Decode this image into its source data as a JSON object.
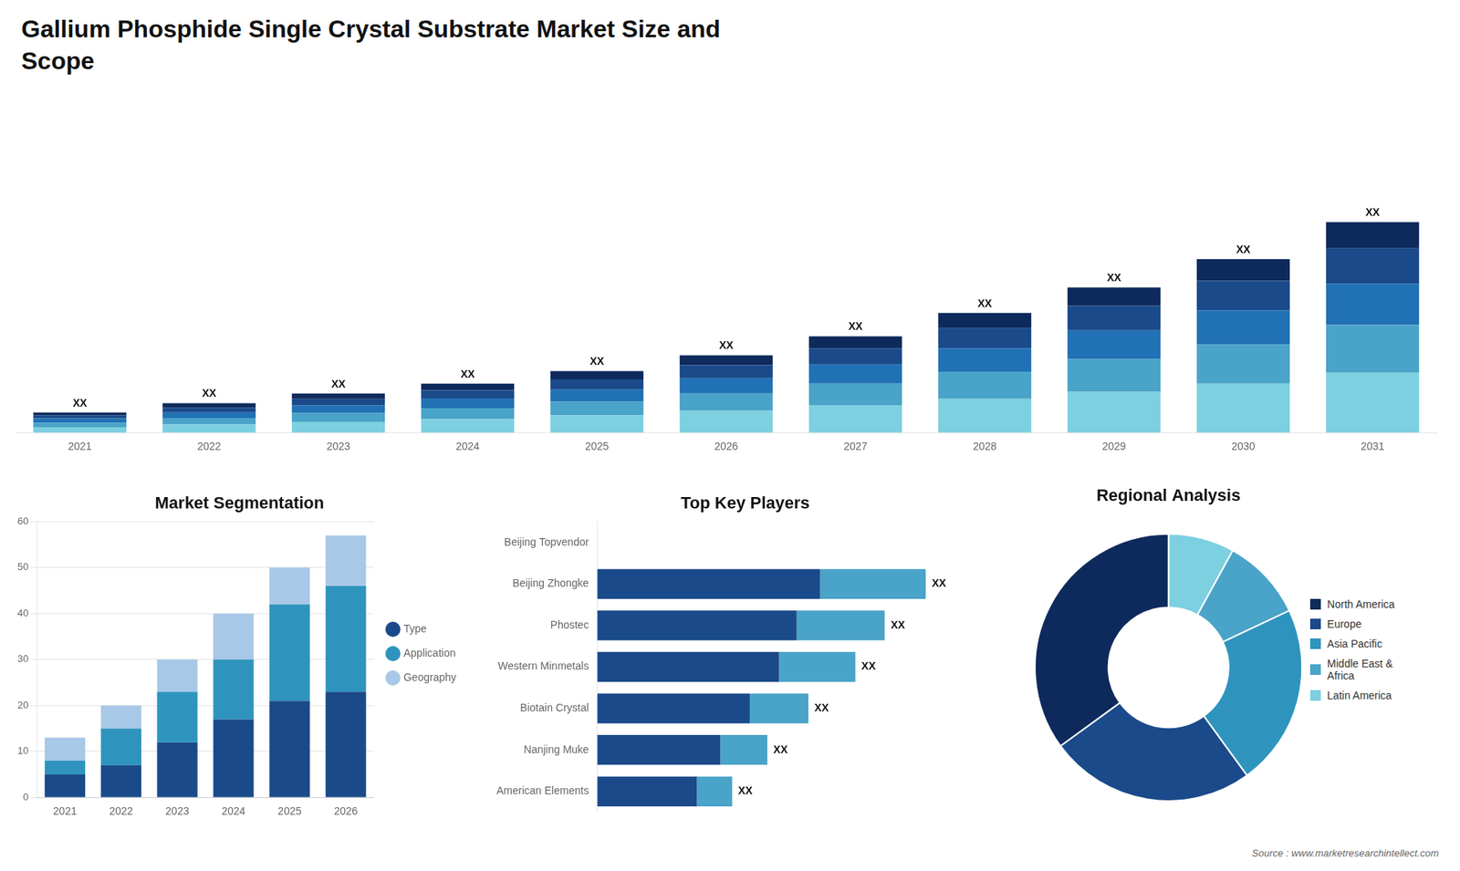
{
  "title": "Gallium Phosphide Single Crystal Substrate Market Size and\nScope",
  "source": "Source : www.marketresearchintellect.com",
  "chart_data": [
    {
      "type": "bar",
      "stacked": true,
      "categories": [
        "2021",
        "2022",
        "2023",
        "2024",
        "2025",
        "2026",
        "2027",
        "2028",
        "2029",
        "2030",
        "2031"
      ],
      "series": [
        {
          "color": "#7dd0e0",
          "values": [
            1.0,
            1.5,
            2.0,
            2.5,
            3.2,
            4.0,
            5.0,
            6.2,
            7.5,
            9.0,
            11.0
          ]
        },
        {
          "color": "#4aa3c8",
          "values": [
            0.8,
            1.2,
            1.6,
            2.0,
            2.5,
            3.2,
            4.0,
            5.0,
            6.0,
            7.2,
            8.8
          ]
        },
        {
          "color": "#2171b5",
          "values": [
            0.8,
            1.0,
            1.4,
            1.8,
            2.2,
            2.8,
            3.5,
            4.3,
            5.3,
            6.3,
            7.6
          ]
        },
        {
          "color": "#1a4a8a",
          "values": [
            0.6,
            0.9,
            1.2,
            1.5,
            1.9,
            2.4,
            3.0,
            3.7,
            4.5,
            5.4,
            6.5
          ]
        },
        {
          "color": "#0e2a5c",
          "values": [
            0.5,
            0.8,
            1.0,
            1.2,
            1.5,
            1.8,
            2.2,
            2.8,
            3.4,
            4.0,
            4.8
          ]
        }
      ],
      "ylim": [
        0,
        59.985
      ],
      "tick_labels": "x",
      "grid": false,
      "annotations": [
        {
          "category": "2021",
          "text": "XX"
        },
        {
          "category": "2022",
          "text": "XX"
        },
        {
          "category": "2023",
          "text": "XX"
        },
        {
          "category": "2024",
          "text": "XX"
        },
        {
          "category": "2025",
          "text": "XX"
        },
        {
          "category": "2026",
          "text": "XX"
        },
        {
          "category": "2027",
          "text": "XX"
        },
        {
          "category": "2028",
          "text": "XX"
        },
        {
          "category": "2029",
          "text": "XX"
        },
        {
          "category": "2030",
          "text": "XX"
        },
        {
          "category": "2031",
          "text": "XX"
        }
      ]
    },
    {
      "type": "bar",
      "title": "Market Segmentation",
      "stacked": true,
      "categories": [
        "2021",
        "2022",
        "2023",
        "2024",
        "2025",
        "2026"
      ],
      "series": [
        {
          "name": "Type",
          "color": "#1a4a8a",
          "values": [
            5,
            7,
            12,
            17,
            21,
            23
          ]
        },
        {
          "name": "Application",
          "color": "#2e94be",
          "values": [
            3,
            8,
            11,
            13,
            21,
            23
          ]
        },
        {
          "name": "Geography",
          "color": "#a8c8e8",
          "values": [
            5,
            5,
            7,
            10,
            8,
            11
          ]
        }
      ],
      "ylim": [
        0,
        60
      ],
      "yticks": [
        0,
        10,
        20,
        30,
        40,
        50,
        60
      ],
      "grid": true,
      "legend": "right"
    },
    {
      "type": "bar",
      "title": "Top Key Players",
      "orientation": "horizontal",
      "stacked": true,
      "categories": [
        "Beijing Topvendor",
        "Beijing Zhongke",
        "Phostec",
        "Western Minmetals",
        "Biotain Crystal",
        "Nanjing Muke",
        "American Elements"
      ],
      "series": [
        {
          "color": "#1a4a8a",
          "values": [
            0,
            38,
            34,
            31,
            26,
            21,
            17
          ]
        },
        {
          "color": "#4aa3c8",
          "values": [
            0,
            18,
            15,
            13,
            10,
            8,
            6
          ]
        }
      ],
      "xlim": [
        0,
        68
      ],
      "tick_labels": "y",
      "grid": false,
      "annotations": [
        {
          "category": "Beijing Zhongke",
          "text": "XX"
        },
        {
          "category": "Phostec",
          "text": "XX"
        },
        {
          "category": "Western Minmetals",
          "text": "XX"
        },
        {
          "category": "Biotain Crystal",
          "text": "XX"
        },
        {
          "category": "Nanjing Muke",
          "text": "XX"
        },
        {
          "category": "American Elements",
          "text": "XX"
        }
      ]
    },
    {
      "type": "doughnut",
      "title": "Regional Analysis",
      "categories": [
        "Latin America",
        "Middle East &\nAfrica",
        "Asia Pacific",
        "Europe",
        "North America"
      ],
      "values": [
        8,
        10,
        22,
        25,
        35
      ],
      "colors": [
        "#7dd0e0",
        "#4aa3c8",
        "#2e94be",
        "#1a4a8a",
        "#0e2a5c"
      ],
      "legend": "right"
    }
  ]
}
